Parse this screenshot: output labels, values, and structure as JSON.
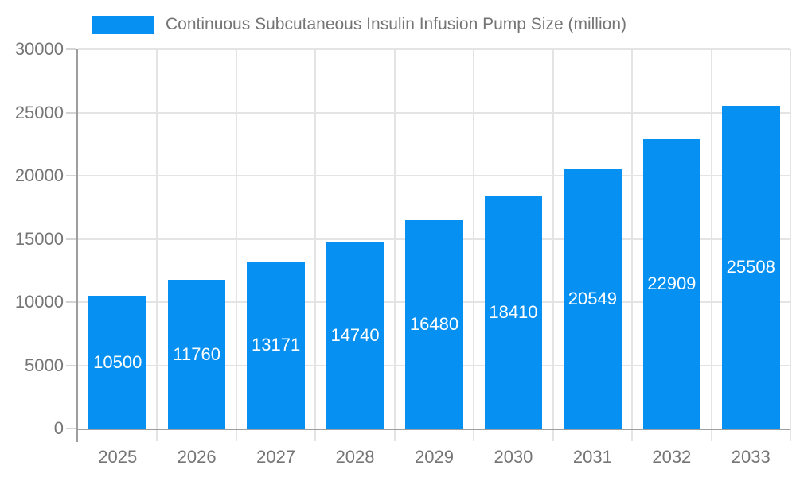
{
  "legend": {
    "label": "Continuous Subcutaneous Insulin Infusion Pump Size (million)"
  },
  "chart_data": {
    "type": "bar",
    "title": "Continuous Subcutaneous Insulin Infusion Pump Size (million)",
    "categories": [
      "2025",
      "2026",
      "2027",
      "2028",
      "2029",
      "2030",
      "2031",
      "2032",
      "2033"
    ],
    "values": [
      10500,
      11760,
      13171,
      14740,
      16480,
      18410,
      20549,
      22909,
      25508
    ],
    "xlabel": "",
    "ylabel": "",
    "ylim": [
      0,
      30000
    ],
    "yticks": [
      0,
      5000,
      10000,
      15000,
      20000,
      25000,
      30000
    ],
    "grid": true,
    "legend_position": "top",
    "colors": {
      "bar": "#0590F2",
      "bar_value_label": "#ffffff",
      "axis_text": "#757575",
      "axis_line": "#9e9e9e",
      "gridline": "#e4e4e4",
      "background": "#ffffff"
    },
    "bar_width_fraction": 0.73,
    "value_label_position": "center-of-bar"
  }
}
